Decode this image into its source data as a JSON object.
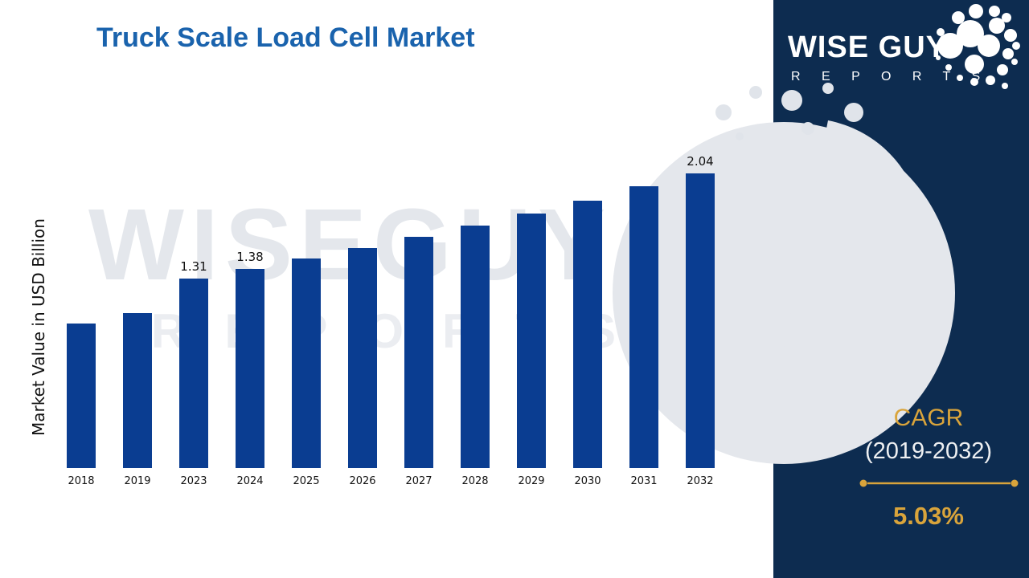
{
  "page": {
    "title": "Truck Scale Load Cell Market"
  },
  "chart_data": {
    "type": "bar",
    "title": "Truck Scale Load Cell Market",
    "xlabel": "",
    "ylabel": "Market Value in USD Billion",
    "unit": "USD Billion",
    "categories": [
      "2018",
      "2019",
      "2023",
      "2024",
      "2025",
      "2026",
      "2027",
      "2028",
      "2029",
      "2030",
      "2031",
      "2032"
    ],
    "values": [
      1.0,
      1.07,
      1.31,
      1.38,
      1.45,
      1.52,
      1.6,
      1.68,
      1.76,
      1.85,
      1.95,
      2.04
    ],
    "point_labels": [
      "",
      "",
      "1.31",
      "1.38",
      "",
      "",
      "",
      "",
      "",
      "",
      "",
      "2.04"
    ],
    "ylim": [
      0,
      2.2
    ],
    "grid": false,
    "legend": "none"
  },
  "watermark": {
    "line1": "WISEGUY",
    "line2": "REPORTS"
  },
  "logo": {
    "name_top": "WISE GUY",
    "name_bottom": "R E P O R T S"
  },
  "cagr": {
    "label": "CAGR",
    "range": "(2019-2032)",
    "value": "5.03%"
  },
  "colors": {
    "bar": "#0a3d91",
    "panel": "#0d2c50",
    "title": "#1a63ad",
    "gold": "#d9a43b",
    "watermark": "#e4e7ec"
  }
}
